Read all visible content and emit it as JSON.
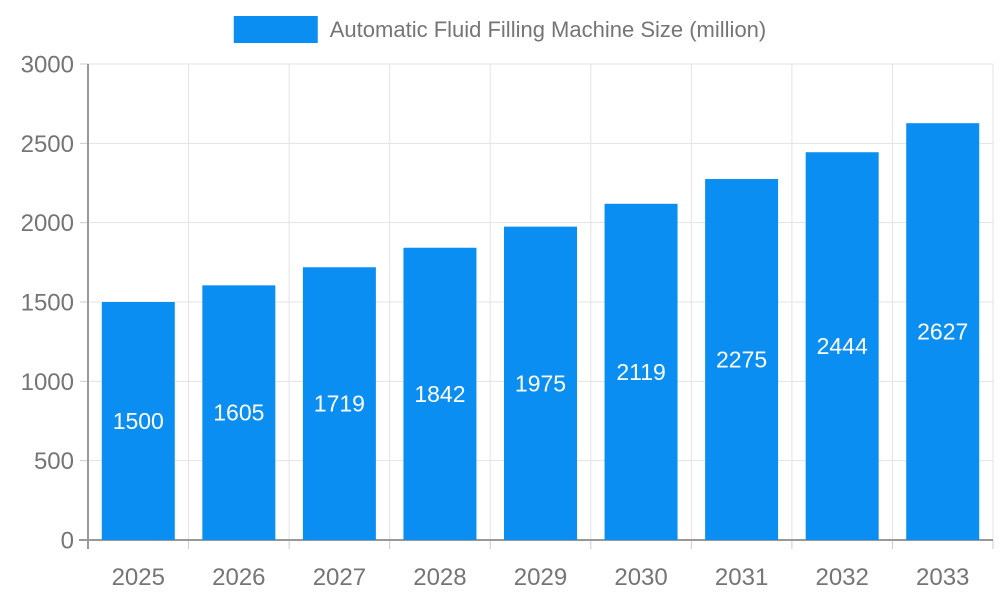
{
  "chart_data": {
    "type": "bar",
    "title": "Automatic Fluid Filling Machine Size (million)",
    "categories": [
      "2025",
      "2026",
      "2027",
      "2028",
      "2029",
      "2030",
      "2031",
      "2032",
      "2033"
    ],
    "values": [
      1500,
      1605,
      1719,
      1842,
      1975,
      2119,
      2275,
      2444,
      2627
    ],
    "series_name": "Automatic Fluid Filling Machine Size (million)",
    "xlabel": "",
    "ylabel": "",
    "ylim": [
      0,
      3000
    ],
    "ytick_labels": [
      "0",
      "500",
      "1000",
      "1500",
      "2000",
      "2500",
      "3000"
    ],
    "bar_value_labels": [
      "1500",
      "1605",
      "1719",
      "1842",
      "1975",
      "2119",
      "2275",
      "2444",
      "2627"
    ],
    "grid": "on",
    "legend_position": "top-center",
    "colors": {
      "bar": "#0B8EF2",
      "axis_line": "#999999",
      "gridline": "#E3E3E3",
      "tick": "#CCCCCC",
      "axis_label": "#757575",
      "bar_label": "#FFFFFF",
      "legend_text": "#757575",
      "background": "#FFFFFF"
    }
  }
}
